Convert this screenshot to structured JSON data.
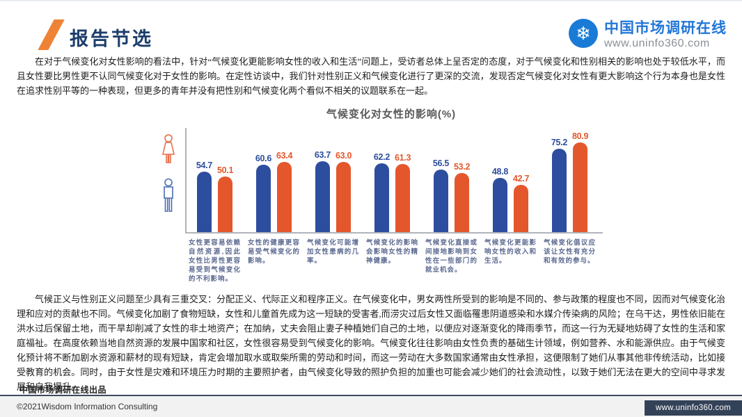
{
  "header": {
    "title": "报告节选",
    "logo_brand": "中国市场调研在线",
    "logo_url": "www.uninfo360.com"
  },
  "paragraphs": {
    "intro": "在对于气候变化对女性影响的看法中，针对“气候变化更能影响女性的收入和生活”问题上，受访者总体上呈否定的态度，对于气候变化和性别相关的影响也处于较低水平，而且女性要比男性更不认同气候变化对于女性的影响。在定性访谈中，我们针对性别正义和气候变化进行了更深的交流，发现否定气候变化对女性有更大影响这个行为本身也是女性在追求性别平等的一种表现，但更多的青年并没有把性别和气候变化两个看似不相关的议题联系在一起。",
    "analysis": "气候正义与性别正义问题至少具有三重交叉：分配正义、代际正义和程序正义。在气候变化中，男女两性所受到的影响是不同的、参与政策的程度也不同，因而对气候变化治理和应对的贡献也不同。气候变化加剧了食物短缺，女性和儿童首先成为这一短缺的受害者,而涝灾过后女性又面临罹患阴道感染和水媒介传染病的风险；在乌干达，男性依旧能在洪水过后保留土地，而干旱却削减了女性的非土地资产；在加纳，丈夫会阻止妻子种植她们自己的土地，以便应对逐渐变化的降雨季节，而这一行为无疑地妨碍了女性的生活和家庭福祉。在高度依赖当地自然资源的发展中国家和社区，女性很容易受到气候变化的影响。气候变化往往影响由女性负责的基础生计领域，例如营养、水和能源供应。由于气候变化预计将不断加剧水资源和薪材的现有短缺，肯定会增加取水或取柴所需的劳动和时间，而这一劳动在大多数国家通常由女性承担，这便限制了她们从事其他非传统活动，比如接受教育的机会。同时，由于女性是灾难和环境压力时期的主要照护者，由气候变化导致的照护负担的加重也可能会减少她们的社会流动性，以致于她们无法在更大的空间中寻求发展和自我提升。"
  },
  "chart_data": {
    "type": "bar",
    "title": "气候变化对女性的影响(%)",
    "categories": [
      "女性更容易依赖自然资源,因此女性比男性更容易受到气候变化的不利影响。",
      "女性的健康更容易受气候变化的影响。",
      "气候变化可能增加女性患病的几率。",
      "气候变化的影响会影响女性的精神健康。",
      "气候变化直接或间接地影响到女性在一些部门的就业机会。",
      "气候变化更能影响女性的收入和生活。",
      "气候变化倡议应该让女性有充分和有效的参与。"
    ],
    "series": [
      {
        "name": "male-blue",
        "color": "#2d4e9e",
        "values": [
          54.7,
          60.6,
          63.7,
          62.2,
          56.5,
          48.8,
          75.2
        ]
      },
      {
        "name": "female-orange",
        "color": "#e4572c",
        "values": [
          50.1,
          63.4,
          63.0,
          61.3,
          53.2,
          42.7,
          80.9
        ]
      }
    ],
    "legend": [
      {
        "icon": "female-person-icon",
        "color": "#e8714b"
      },
      {
        "icon": "male-person-icon",
        "color": "#4a6cb3"
      }
    ],
    "ylim": [
      0,
      90
    ],
    "value_labels": true,
    "grid": false,
    "legend_position": "left"
  },
  "footer": {
    "produced_by": "中国市场调研在线出品",
    "copyright": "©2021Wisdom Information Consulting",
    "site": "www.uninfo360.com"
  }
}
